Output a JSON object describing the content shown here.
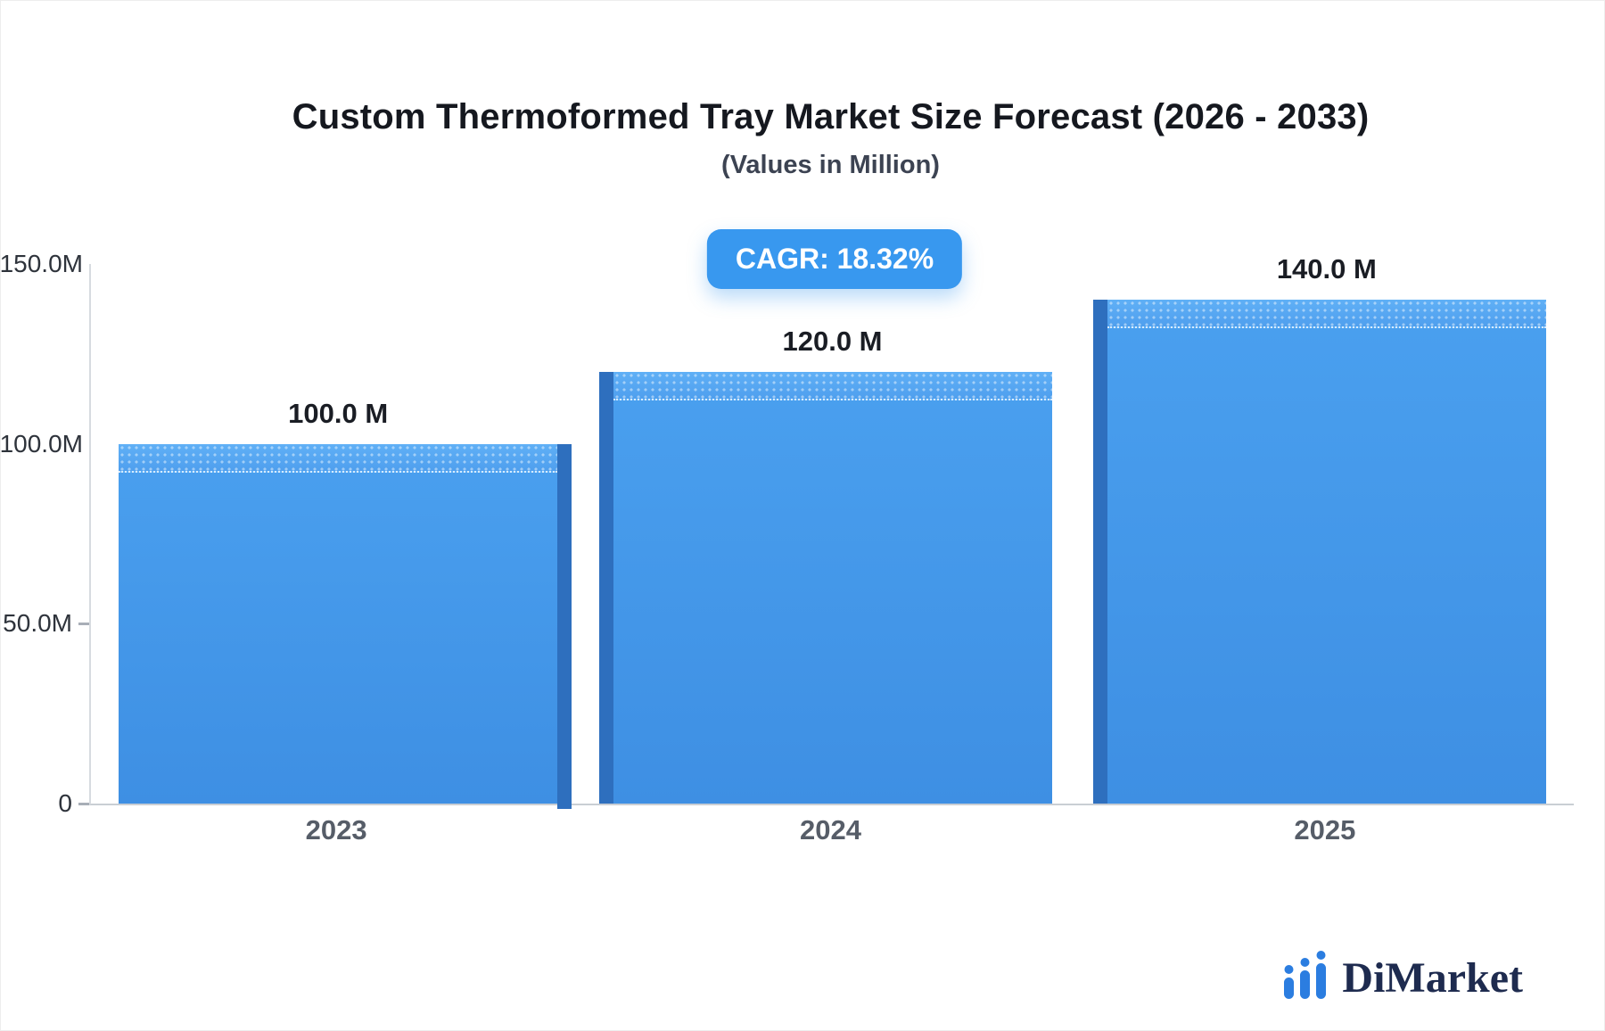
{
  "title": "Custom Thermoformed Tray Market Size Forecast (2026 - 2033)",
  "subtitle": "(Values in Million)",
  "cagr_badge": "CAGR: 18.32%",
  "logo": {
    "text": "DiMarket"
  },
  "colors": {
    "bar": "#4197EC",
    "bar_side": "#2E6FBE",
    "bar_cap": "#5FACF3",
    "badge": "#3898EF",
    "logo_blue": "#2B7DE0",
    "logo_text": "#1E2B4F"
  },
  "chart_data": {
    "type": "bar",
    "title": "Custom Thermoformed Tray Market Size Forecast (2026 - 2033)",
    "subtitle": "(Values in Million)",
    "categories": [
      "2023",
      "2024",
      "2025"
    ],
    "values": [
      100.0,
      120.0,
      140.0
    ],
    "value_labels": [
      "100.0 M",
      "120.0 M",
      "140.0 M"
    ],
    "unit": "Million",
    "ylim": [
      0,
      150
    ],
    "yticks": [
      {
        "label": "150.0M",
        "value": 150
      },
      {
        "label": "100.0M",
        "value": 100
      },
      {
        "label": "50.0M",
        "value": 50
      },
      {
        "label": "0",
        "value": 0
      }
    ],
    "annotations": [
      "CAGR: 18.32%"
    ],
    "legend": false,
    "grid": false
  }
}
